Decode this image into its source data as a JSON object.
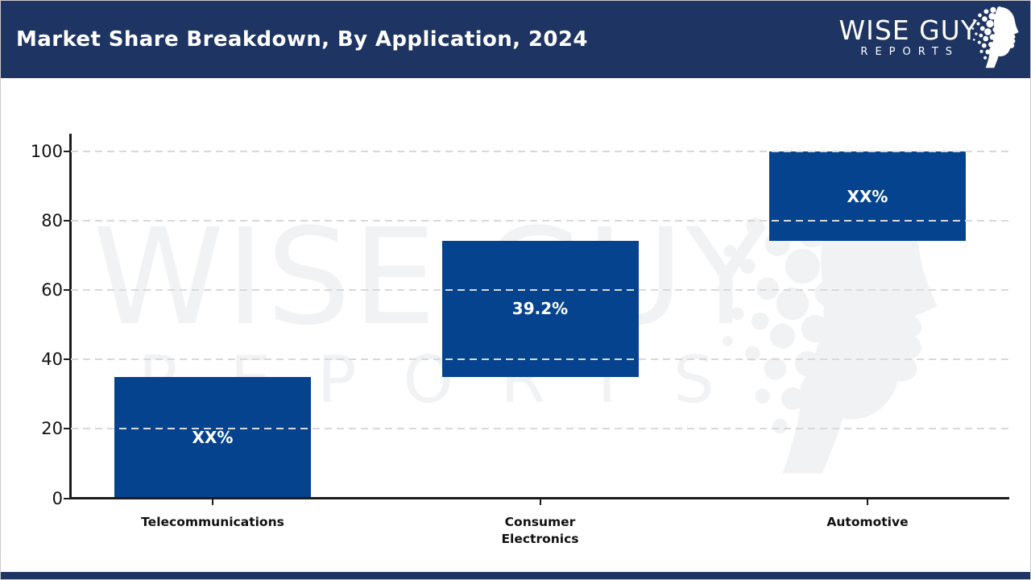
{
  "header": {
    "title": "Market Share Breakdown, By Application, 2024",
    "logo_wordmark": "WISE GUY",
    "logo_reports": "REPORTS",
    "background_color": "#1e3462"
  },
  "watermark": {
    "wordmark": "WISE GUY",
    "reports": "REPORTS",
    "color": "#f1f2f4"
  },
  "chart_data": {
    "type": "bar",
    "variant": "floating-segment-waterfall",
    "title": "Market Share Breakdown, By Application, 2024",
    "xlabel": "",
    "ylabel": "",
    "categories": [
      "Telecommunications",
      "Consumer\nElectronics",
      "Automotive"
    ],
    "series": [
      {
        "name": "Market Share (%)",
        "segments": [
          {
            "category": "Telecommunications",
            "start": 0,
            "end": 35,
            "label": "XX%"
          },
          {
            "category": "Consumer Electronics",
            "start": 35,
            "end": 74.2,
            "label": "39.2%"
          },
          {
            "category": "Automotive",
            "start": 74.2,
            "end": 100,
            "label": "XX%"
          }
        ]
      }
    ],
    "bar_labels": [
      "XX%",
      "39.2%",
      "XX%"
    ],
    "yticks": [
      0,
      20,
      40,
      60,
      80,
      100
    ],
    "ytick_labels": [
      "0",
      "20",
      "40",
      "60",
      "80",
      "100"
    ],
    "ylim": [
      0,
      105
    ],
    "grid": "dashed-horizontal",
    "legend": "none",
    "bar_color": "#05438f",
    "axis_color": "#1c1c1c",
    "gridline_color": "#d9d9d9"
  }
}
